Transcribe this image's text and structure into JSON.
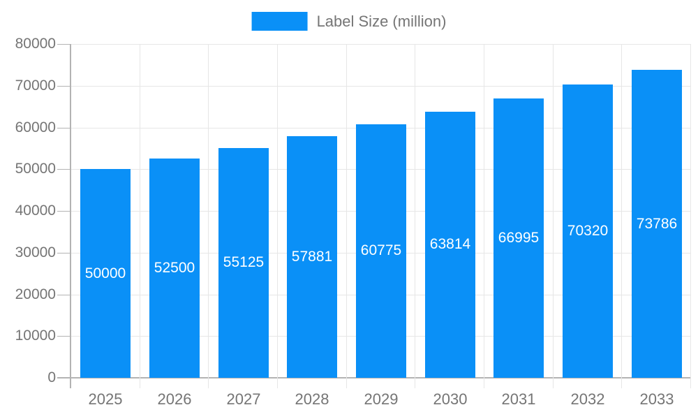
{
  "chart_data": {
    "type": "bar",
    "title": "",
    "legend": "Label Size (million)",
    "legend_position": "top-center",
    "categories": [
      "2025",
      "2026",
      "2027",
      "2028",
      "2029",
      "2030",
      "2031",
      "2032",
      "2033"
    ],
    "values": [
      50000,
      52500,
      55125,
      57881,
      60775,
      63814,
      66995,
      70320,
      73786
    ],
    "bar_labels": [
      "50000",
      "52500",
      "55125",
      "57881",
      "60775",
      "63814",
      "66995",
      "70320",
      "73786"
    ],
    "bar_label_position": "inside-middle",
    "xlabel": "",
    "ylabel": "",
    "ylim": [
      0,
      80000
    ],
    "ytick_interval": 10000,
    "yticks": [
      0,
      10000,
      20000,
      30000,
      40000,
      50000,
      60000,
      70000,
      80000
    ],
    "ytick_labels": [
      "0",
      "10000",
      "20000",
      "30000",
      "40000",
      "50000",
      "60000",
      "70000",
      "80000"
    ],
    "grid": true,
    "colors": {
      "bar": "#0a90f7",
      "bar_value_text": "#ffffff",
      "axis_text": "#757575",
      "gridline": "#e6e6e6",
      "axis_line": "#b3b3b3",
      "background": "#ffffff"
    }
  }
}
